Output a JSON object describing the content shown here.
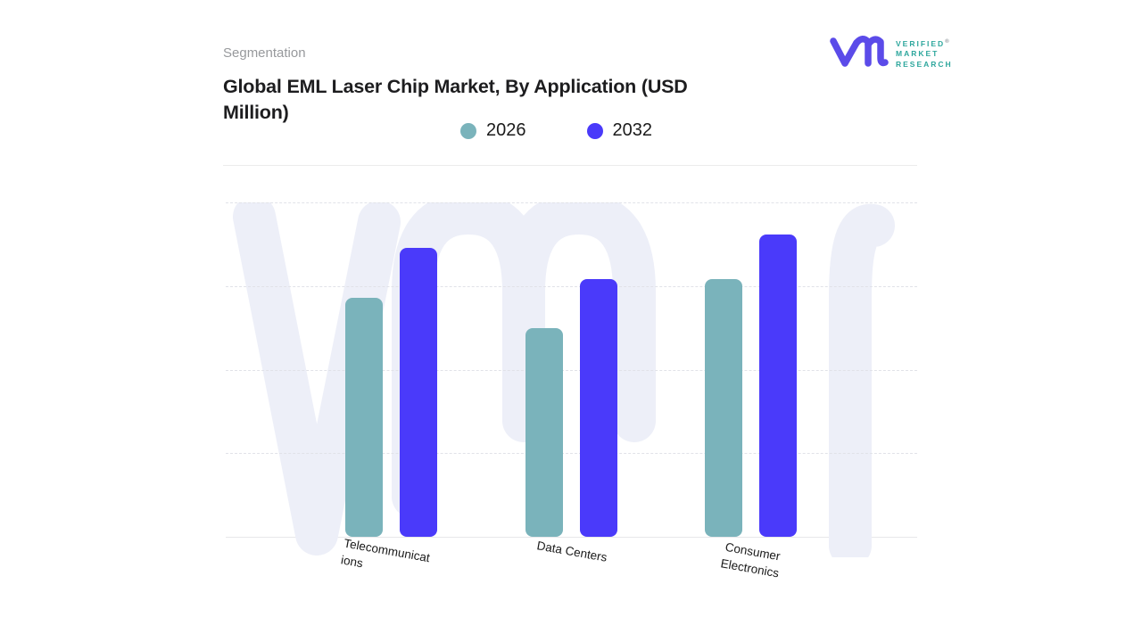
{
  "header": {
    "eyebrow": "Segmentation",
    "title": "Global EML Laser Chip Market, By Application (USD Million)",
    "title_lines": [
      "Global EML Laser Chip Market, By Application (USD",
      "Million)"
    ]
  },
  "logo": {
    "mark": "vmr-monogram",
    "mark_color": "#5B4BE9",
    "text_color": "#2EA79D",
    "lines": [
      "VERIFIED",
      "MARKET",
      "RESEARCH"
    ],
    "registered": "®"
  },
  "legend": {
    "items": [
      {
        "label": "2026",
        "color": "#7AB3BB"
      },
      {
        "label": "2032",
        "color": "#4A3AFA"
      }
    ]
  },
  "chart_data": {
    "type": "bar",
    "title": "Global EML Laser Chip Market, By Application (USD Million)",
    "categories": [
      "Telecommunications",
      "Data Centers",
      "Consumer Electronics"
    ],
    "category_label_lines": [
      [
        "Telecommunicat",
        "ions"
      ],
      [
        "Data Centers"
      ],
      [
        "Consumer",
        "Electronics"
      ]
    ],
    "series": [
      {
        "name": "2026",
        "color": "#7AB3BB",
        "values": [
          71.5,
          62.5,
          77
        ]
      },
      {
        "name": "2032",
        "color": "#4A3AFA",
        "values": [
          86.5,
          77,
          90.5
        ]
      }
    ],
    "xlabel": "",
    "ylabel": "",
    "ylim": [
      0,
      100
    ],
    "y_tick_labels_shown": false,
    "values_are_estimates": true,
    "grid": "horizontal-dashed",
    "legend_position": "top-center",
    "watermark": "vmr"
  }
}
